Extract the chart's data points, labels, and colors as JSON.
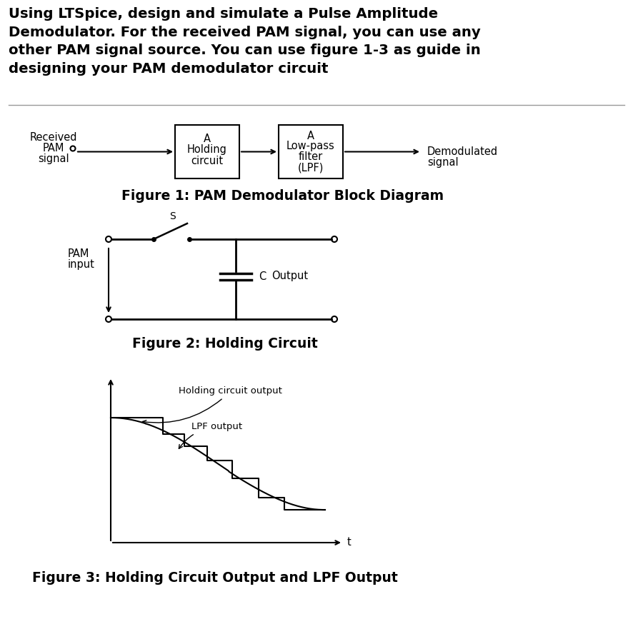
{
  "title_text": "Using LTSpice, design and simulate a Pulse Amplitude\nDemodulator. For the received PAM signal, you can use any\nother PAM signal source. You can use figure 1-3 as guide in\ndesigning your PAM demodulator circuit",
  "fig1_caption": "Figure 1: PAM Demodulator Block Diagram",
  "fig2_caption": "Figure 2: Holding Circuit",
  "fig3_caption": "Figure 3: Holding Circuit Output and LPF Output",
  "hold_label": "Holding circuit output",
  "lpf_label": "LPF output",
  "bg_color": "#ffffff",
  "text_color": "#000000",
  "title_fontsize": 14.2,
  "body_fontsize": 10.5,
  "caption_fontsize": 13.5
}
